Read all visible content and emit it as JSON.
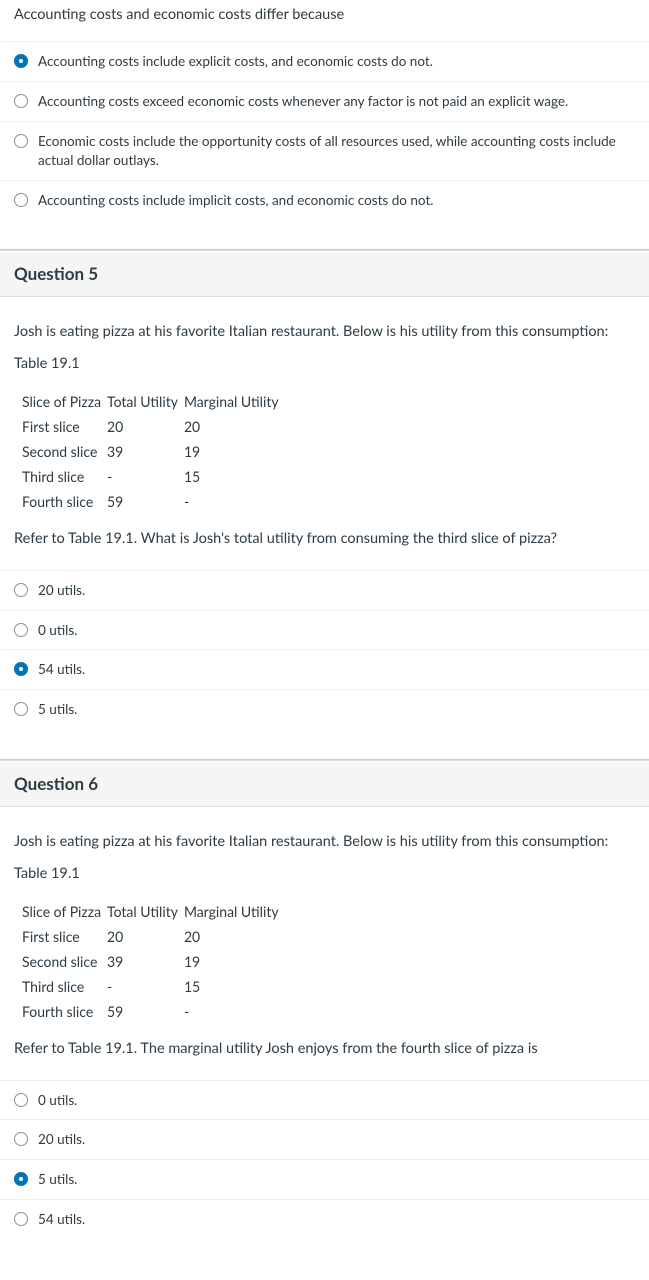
{
  "q4": {
    "prompt": "Accounting costs and economic costs differ because",
    "options": [
      {
        "text": "Accounting costs include explicit costs, and economic costs do not.",
        "selected": true
      },
      {
        "text": "Accounting costs exceed economic costs whenever any factor is not paid an explicit wage.",
        "selected": false
      },
      {
        "text": "Economic costs include the opportunity costs of all resources used, while accounting costs include actual dollar outlays.",
        "selected": false
      },
      {
        "text": "Accounting costs include implicit costs, and economic costs do not.",
        "selected": false
      }
    ]
  },
  "q5": {
    "title": "Question 5",
    "intro": "Josh is eating pizza at his favorite Italian restaurant. Below is his utility from this consumption:",
    "tableLabel": "Table 19.1",
    "headers": [
      "Slice of Pizza",
      "Total Utility",
      "Marginal Utility"
    ],
    "rows": [
      [
        "First slice",
        "20",
        "20"
      ],
      [
        "Second slice",
        "39",
        "19"
      ],
      [
        "Third slice",
        "-",
        "15"
      ],
      [
        "Fourth slice",
        "59",
        "-"
      ]
    ],
    "followup": "Refer to Table 19.1. What is Josh's total utility from consuming the third slice of pizza?",
    "options": [
      {
        "text": "20 utils.",
        "selected": false
      },
      {
        "text": "0 utils.",
        "selected": false
      },
      {
        "text": "54 utils.",
        "selected": true
      },
      {
        "text": "5 utils.",
        "selected": false
      }
    ]
  },
  "q6": {
    "title": "Question 6",
    "intro": "Josh is eating pizza at his favorite Italian restaurant. Below is his utility from this consumption:",
    "tableLabel": "Table 19.1",
    "headers": [
      "Slice of Pizza",
      "Total Utility",
      "Marginal Utility"
    ],
    "rows": [
      [
        "First slice",
        "20",
        "20"
      ],
      [
        "Second slice",
        "39",
        "19"
      ],
      [
        "Third slice",
        "-",
        "15"
      ],
      [
        "Fourth slice",
        "59",
        "-"
      ]
    ],
    "followup": "Refer to Table 19.1. The marginal utility Josh enjoys from the fourth slice of pizza is",
    "options": [
      {
        "text": "0 utils.",
        "selected": false
      },
      {
        "text": "20 utils.",
        "selected": false
      },
      {
        "text": "5 utils.",
        "selected": true
      },
      {
        "text": "54 utils.",
        "selected": false
      }
    ]
  }
}
